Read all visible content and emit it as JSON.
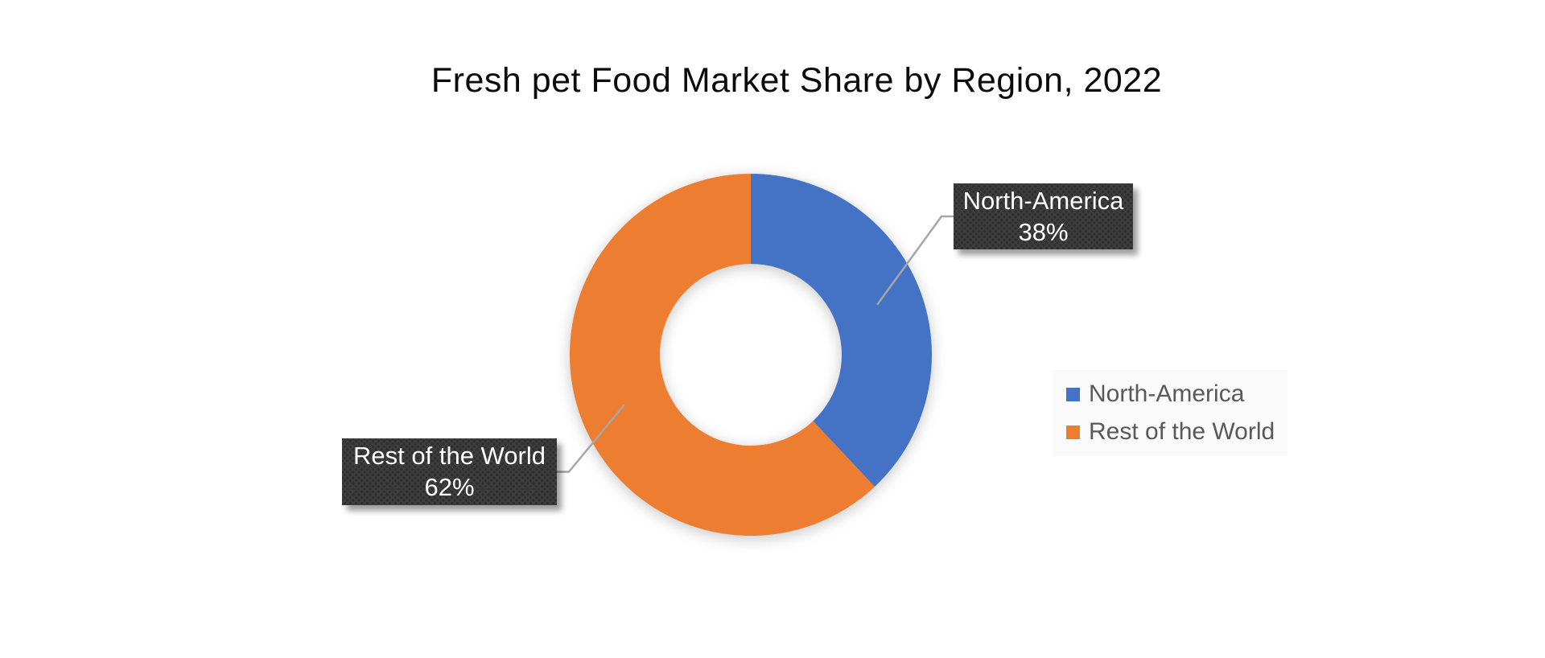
{
  "title": "Fresh pet Food Market Share by Region, 2022",
  "chart_data": {
    "type": "pie",
    "subtype": "donut",
    "title": "Fresh pet Food Market Share by Region, 2022",
    "categories": [
      "North-America",
      "Rest of the World"
    ],
    "values": [
      38,
      62
    ],
    "unit": "%",
    "colors": [
      "#4472C4",
      "#ED7D31"
    ],
    "start_angle_deg": 0,
    "direction": "clockwise",
    "inner_radius_ratio": 0.5,
    "legend_position": "right",
    "data_label_style": "callout-boxes",
    "callouts": [
      {
        "category": "North-America",
        "value_label": "38%"
      },
      {
        "category": "Rest of the World",
        "value_label": "62%"
      }
    ]
  },
  "legend": {
    "items": [
      {
        "label": "North-America",
        "color": "#4472C4"
      },
      {
        "label": "Rest of the World",
        "color": "#ED7D31"
      }
    ]
  },
  "style": {
    "background": "#ffffff",
    "title_color": "#0c0c0c",
    "leader_line_color": "#A6A6A6",
    "callout_background": "#3E3E3E",
    "callout_dot_color": "#2F2F2F",
    "callout_text_color": "#FFFFFF",
    "legend_background": "#FAFAFA",
    "legend_text_color": "#595959"
  }
}
